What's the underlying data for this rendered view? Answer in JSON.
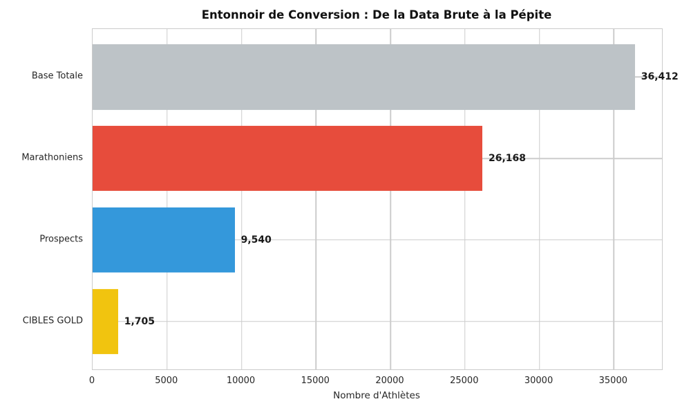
{
  "chart_data": {
    "type": "bar",
    "orientation": "horizontal",
    "title": "Entonnoir de Conversion : De la Data Brute à la Pépite",
    "xlabel": "Nombre d'Athlètes",
    "ylabel": "",
    "categories": [
      "Base Totale",
      "Marathoniens",
      "Prospects",
      "CIBLES GOLD"
    ],
    "values": [
      36412,
      26168,
      9540,
      1705
    ],
    "value_labels": [
      "36,412",
      "26,168",
      "9,540",
      "1,705"
    ],
    "bar_colors": [
      "#bdc3c7",
      "#e74c3c",
      "#3498db",
      "#f1c40f"
    ],
    "x_ticks": [
      0,
      5000,
      10000,
      15000,
      20000,
      25000,
      30000,
      35000
    ],
    "x_tick_labels": [
      "0",
      "5000",
      "10000",
      "15000",
      "20000",
      "25000",
      "30000",
      "35000"
    ],
    "xlim": [
      0,
      38233
    ],
    "grid": "both",
    "grid_color": "#cccccc",
    "background_color": "#ffffff",
    "text_color": "#262626",
    "legend": null
  }
}
